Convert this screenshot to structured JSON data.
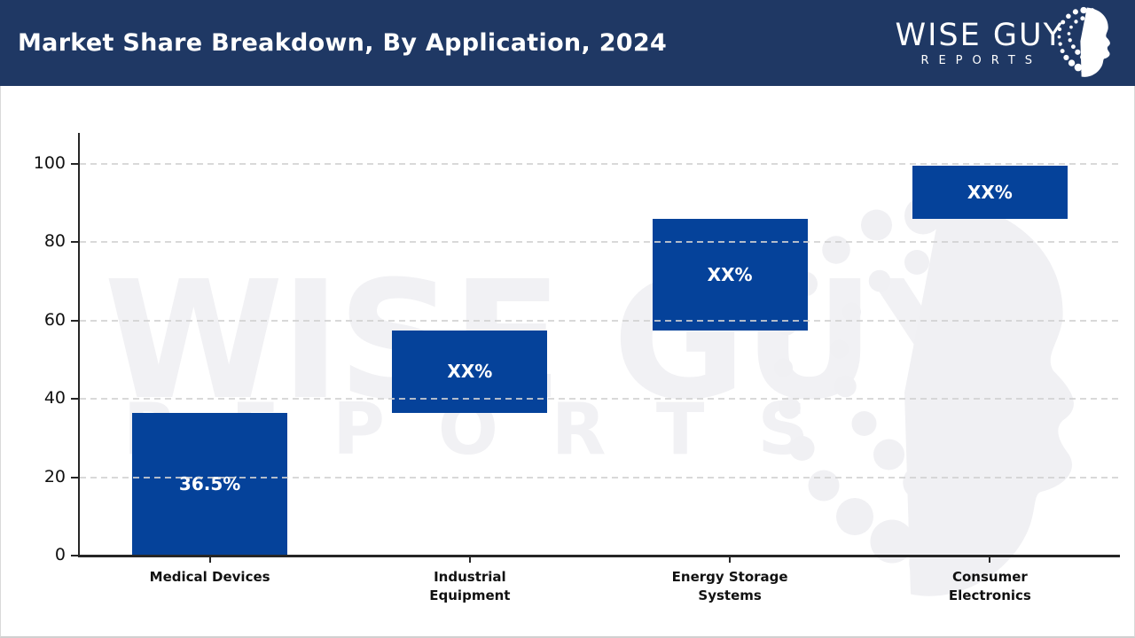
{
  "header": {
    "title": "Market Share Breakdown, By Application, 2024",
    "bg_color": "#1f3864",
    "logo": {
      "word": "WISE GUY",
      "sub": "REPORTS"
    }
  },
  "watermark": {
    "word": "WISE GUY",
    "sub": "REPORTS"
  },
  "chart_data": {
    "type": "bar",
    "subtype": "cumulative-floating-waterfall",
    "title": "Market Share Breakdown, By Application, 2024",
    "categories": [
      "Medical Devices",
      "Industrial Equipment",
      "Energy Storage Systems",
      "Consumer Electronics"
    ],
    "category_label_lines": [
      [
        "Medical Devices"
      ],
      [
        "Industrial",
        "Equipment"
      ],
      [
        "Energy Storage",
        "Systems"
      ],
      [
        "Consumer",
        "Electronics"
      ]
    ],
    "segments": [
      {
        "category": "Medical Devices",
        "start": 0,
        "end": 36.5,
        "label": "36.5%"
      },
      {
        "category": "Industrial Equipment",
        "start": 36.5,
        "end": 57.5,
        "label": "XX%"
      },
      {
        "category": "Energy Storage Systems",
        "start": 57.5,
        "end": 86,
        "label": "XX%"
      },
      {
        "category": "Consumer Electronics",
        "start": 86,
        "end": 99.5,
        "label": "XX%"
      }
    ],
    "ylim": [
      0,
      100
    ],
    "yticks": [
      0,
      20,
      40,
      60,
      80,
      100
    ],
    "xlabel": "",
    "ylabel": "",
    "grid": "horizontal-dashed",
    "legend": "none",
    "bar_color": "#05429a",
    "bar_label_color": "#ffffff",
    "grid_color": "#d2d2d2",
    "axis_color": "#262626"
  }
}
